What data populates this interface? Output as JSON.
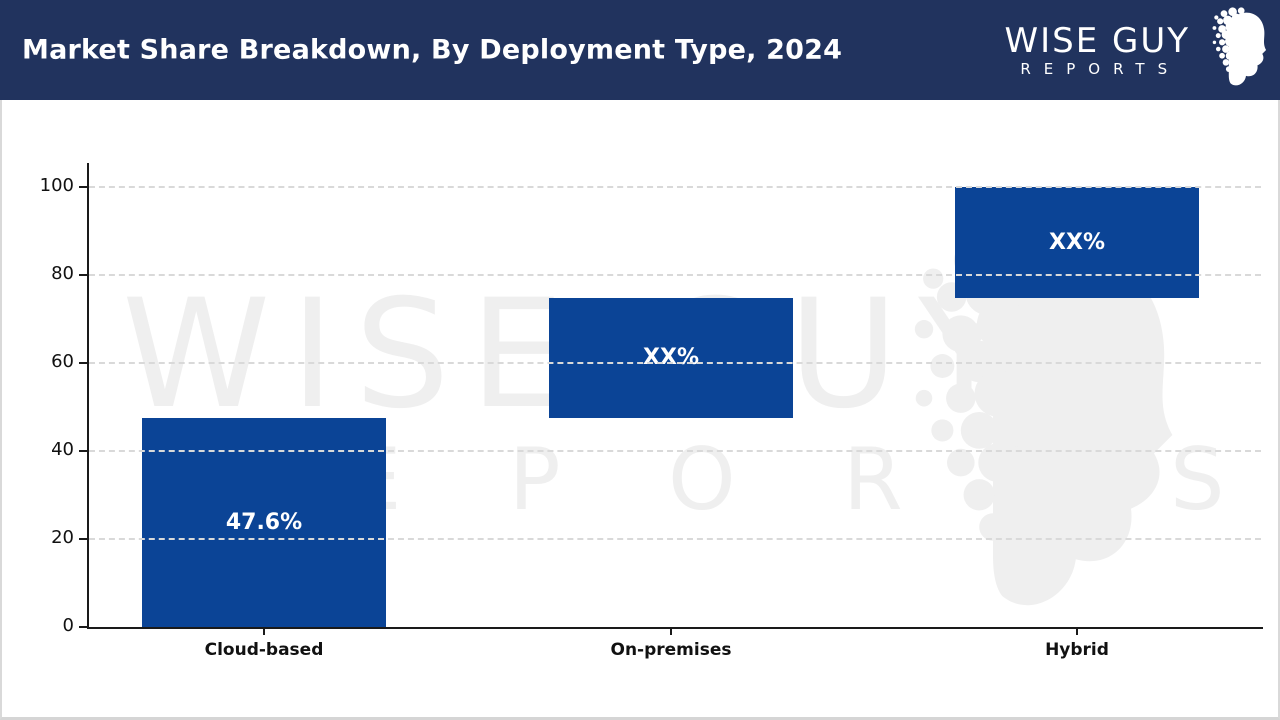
{
  "header": {
    "title": "Market Share Breakdown, By Deployment Type, 2024",
    "brand_line1": "WISE GUY",
    "brand_line2": "REPORTS"
  },
  "watermark": {
    "line1": "WISE GUY",
    "line2": "R E P O R T S"
  },
  "chart_data": {
    "type": "bar",
    "variant": "floating-waterfall",
    "title": "Market Share Breakdown, By Deployment Type, 2024",
    "categories": [
      "Cloud-based",
      "On-premises",
      "Hybrid"
    ],
    "segments": [
      {
        "category": "Cloud-based",
        "start": 0,
        "end": 47.6,
        "label": "47.6%"
      },
      {
        "category": "On-premises",
        "start": 47.6,
        "end": 74.8,
        "label": "XX%"
      },
      {
        "category": "Hybrid",
        "start": 74.8,
        "end": 100,
        "label": "XX%"
      }
    ],
    "ylim": [
      0,
      100
    ],
    "yticks": [
      0,
      20,
      40,
      60,
      80,
      100
    ],
    "xlabel": "",
    "ylabel": "",
    "grid": "horizontal-dashed-over-bars",
    "legend": null,
    "colors": {
      "bar": "#0b4496",
      "bar_label": "#ffffff",
      "header_bg": "#21335e",
      "header_text": "#ffffff",
      "grid_line": "#d9d9d9",
      "axis": "#1a1a1a",
      "watermark": "#efefef"
    }
  }
}
